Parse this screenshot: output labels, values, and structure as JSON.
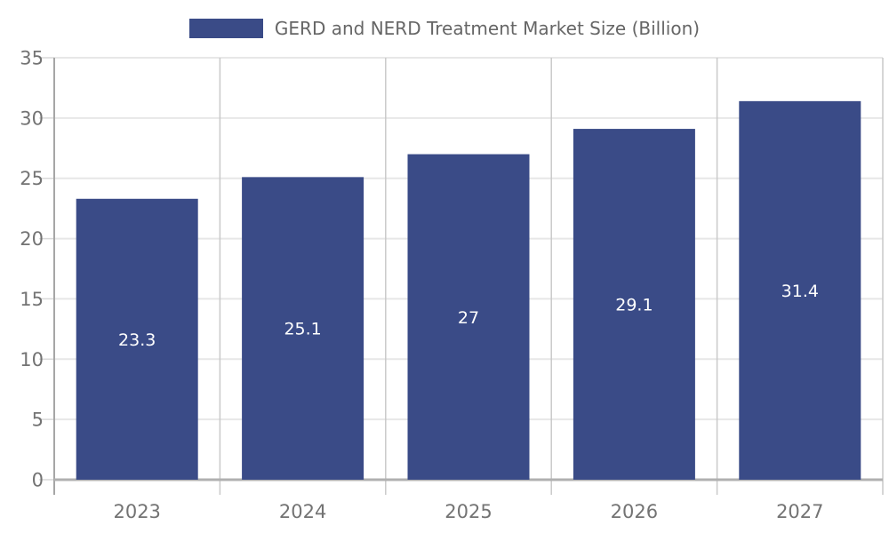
{
  "chart_data": {
    "type": "bar",
    "title": "",
    "legend_label": "GERD and NERD Treatment Market Size (Billion)",
    "legend_position": "top-center",
    "categories": [
      "2023",
      "2024",
      "2025",
      "2026",
      "2027"
    ],
    "series": [
      {
        "name": "GERD and NERD Treatment Market Size (Billion)",
        "values": [
          23.3,
          25.1,
          27,
          29.1,
          31.4
        ],
        "value_labels": [
          "23.3",
          "25.1",
          "27",
          "29.1",
          "31.4"
        ]
      }
    ],
    "xlabel": "",
    "ylabel": "",
    "ylim": [
      0,
      35
    ],
    "yticks": [
      0,
      5,
      10,
      15,
      20,
      25,
      30,
      35
    ],
    "grid": true,
    "colors": {
      "bar": "#3A4B87",
      "bar_label": "#ffffff",
      "axis_line": "#a6a6a6",
      "baseline": "#b0b0b0",
      "grid_horizontal": "#e7e7e7",
      "grid_vertical": "#c9c9c9",
      "tick_mark": "#d9d9d9",
      "tick_label": "#737373",
      "legend_text": "#666666",
      "background": "#ffffff"
    }
  }
}
